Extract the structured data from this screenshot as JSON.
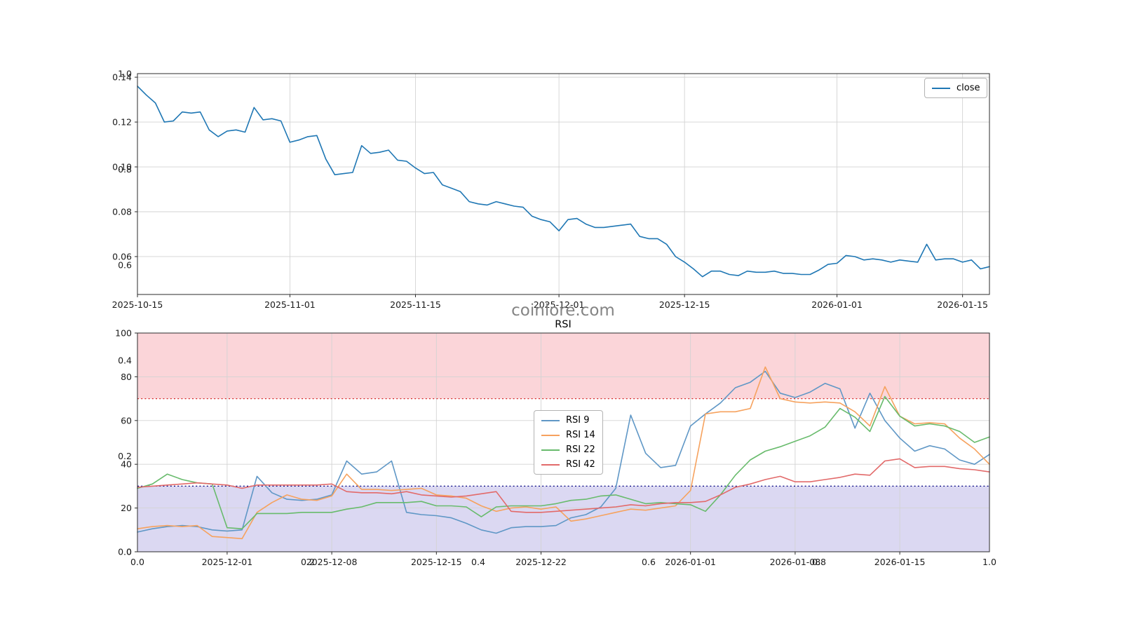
{
  "watermark": "coinlore.com",
  "phantom_axis": {
    "y_labels": [
      "0.0",
      "0.2",
      "0.4",
      "0.6",
      "0.8",
      "1.0"
    ],
    "x_labels": [
      "0.0",
      "0.2",
      "0.4",
      "0.6",
      "0.8",
      "1.0"
    ]
  },
  "chart_data": [
    {
      "type": "line",
      "name": "price",
      "title": "",
      "xlabel": "",
      "ylabel": "",
      "grid": true,
      "legend_position": "upper right",
      "x_tick_labels": [
        "2025-10-15",
        "2025-11-01",
        "2025-11-15",
        "2025-12-01",
        "2025-12-15",
        "2026-01-01",
        "2026-01-15"
      ],
      "x_tick_indices": [
        0,
        17,
        31,
        47,
        61,
        78,
        92
      ],
      "y_ticks": [
        0.06,
        0.08,
        0.1,
        0.12,
        0.14
      ],
      "y_tick_labels": [
        "0.06",
        "0.08",
        "0.10",
        "0.12",
        "0.14"
      ],
      "ylim": [
        0.0431,
        0.1416
      ],
      "series": [
        {
          "name": "close",
          "color": "#1f77b4",
          "values": [
            0.136,
            0.132,
            0.1285,
            0.12,
            0.1205,
            0.1245,
            0.124,
            0.1245,
            0.1165,
            0.1135,
            0.116,
            0.1165,
            0.1155,
            0.1265,
            0.121,
            0.1215,
            0.1205,
            0.111,
            0.112,
            0.1135,
            0.114,
            0.1035,
            0.0965,
            0.097,
            0.0975,
            0.1095,
            0.106,
            0.1065,
            0.1075,
            0.103,
            0.1025,
            0.0995,
            0.097,
            0.0975,
            0.092,
            0.0905,
            0.089,
            0.0845,
            0.0835,
            0.083,
            0.0845,
            0.0835,
            0.0825,
            0.082,
            0.078,
            0.0765,
            0.0755,
            0.0715,
            0.0765,
            0.077,
            0.0745,
            0.073,
            0.073,
            0.0735,
            0.074,
            0.0745,
            0.069,
            0.068,
            0.068,
            0.0655,
            0.06,
            0.0575,
            0.0545,
            0.051,
            0.0535,
            0.0535,
            0.052,
            0.0515,
            0.0535,
            0.053,
            0.053,
            0.0535,
            0.0525,
            0.0525,
            0.052,
            0.052,
            0.054,
            0.0565,
            0.057,
            0.0605,
            0.06,
            0.0585,
            0.059,
            0.0585,
            0.0575,
            0.0585,
            0.058,
            0.0575,
            0.0655,
            0.0585,
            0.059,
            0.059,
            0.0575,
            0.0585,
            0.0545,
            0.0555
          ]
        }
      ]
    },
    {
      "type": "line",
      "name": "rsi",
      "title": "RSI",
      "xlabel": "",
      "ylabel": "",
      "grid": true,
      "legend_position": "center left",
      "x_tick_labels": [
        "2025-12-01",
        "2025-12-08",
        "2025-12-15",
        "2025-12-22",
        "2026-01-01",
        "2026-01-08",
        "2026-01-15"
      ],
      "x_tick_indices": [
        6,
        13,
        20,
        27,
        37,
        44,
        51
      ],
      "y_ticks": [
        0,
        20,
        40,
        60,
        80,
        100
      ],
      "y_tick_labels": [
        "0",
        "20",
        "40",
        "60",
        "80",
        "100"
      ],
      "ylim": [
        0,
        100
      ],
      "hlines": [
        {
          "y": 70,
          "color": "#d62728",
          "style": "dotted"
        },
        {
          "y": 30,
          "color": "#000080",
          "style": "dotted"
        }
      ],
      "bands": [
        {
          "from": 70,
          "to": 100,
          "color": "#fbd5d9"
        },
        {
          "from": 0,
          "to": 30,
          "color": "#dbd8f2"
        }
      ],
      "series": [
        {
          "name": "RSI 9",
          "color": "#5f97c6",
          "values": [
            9,
            10.5,
            11.5,
            12,
            11.5,
            10,
            9.5,
            10,
            34.5,
            27,
            24,
            23.5,
            24,
            26,
            41.5,
            35.5,
            36.5,
            41.5,
            18,
            17,
            16.5,
            15.5,
            13,
            10,
            8.5,
            11,
            11.5,
            11.5,
            12,
            15.5,
            17,
            20.5,
            29,
            62.5,
            45,
            38.5,
            39.5,
            57.5,
            63,
            68,
            75,
            77.5,
            82.5,
            72.5,
            70.5,
            73,
            77,
            74.5,
            56.5,
            72.5,
            60,
            52,
            46,
            48.5,
            47,
            42,
            40,
            44.5
          ]
        },
        {
          "name": "RSI 14",
          "color": "#f6a25e",
          "values": [
            10.5,
            11.5,
            12,
            11.5,
            12,
            7,
            6.5,
            6,
            18,
            22.5,
            26,
            24,
            23.5,
            25.5,
            35.5,
            28.5,
            28.5,
            28,
            28.5,
            29,
            26,
            25.5,
            24.5,
            21,
            18.5,
            20,
            20.5,
            19.5,
            20.5,
            14,
            15,
            16.5,
            18,
            19.5,
            19,
            20,
            21,
            28,
            63,
            64,
            64,
            65.5,
            84.5,
            70,
            68.5,
            68,
            68.5,
            68,
            64,
            57.5,
            75.5,
            62,
            58.5,
            59,
            58.5,
            52,
            47,
            40
          ]
        },
        {
          "name": "RSI 22",
          "color": "#68bb6c",
          "values": [
            29,
            31,
            35.5,
            33,
            31.5,
            31,
            11,
            10.5,
            17.5,
            17.5,
            17.5,
            18,
            18,
            18,
            19.5,
            20.5,
            22.5,
            22.5,
            22.5,
            23,
            21,
            21,
            20.5,
            16,
            20.5,
            21,
            21,
            21,
            22,
            23.5,
            24,
            25.5,
            26,
            24,
            22,
            22.5,
            22,
            21.5,
            18.5,
            26,
            35,
            42,
            46,
            48,
            50.5,
            53,
            57,
            65.5,
            61.5,
            55,
            71,
            62,
            57.5,
            58.5,
            57.5,
            55,
            50,
            52.5
          ]
        },
        {
          "name": "RSI 42",
          "color": "#e26a6a",
          "values": [
            29.5,
            30,
            30.5,
            31,
            31.5,
            31,
            30.5,
            29,
            30.5,
            30.5,
            30.5,
            30.5,
            30.5,
            31,
            27.5,
            27,
            27,
            26.5,
            27.5,
            26,
            25.5,
            25,
            25.5,
            26.5,
            27.5,
            18.5,
            18,
            18,
            18.5,
            19,
            19.5,
            20,
            20.5,
            21.5,
            21,
            22,
            22.5,
            22.5,
            23,
            26,
            29.5,
            31,
            33,
            34.5,
            32,
            32,
            33,
            34,
            35.5,
            35,
            41.5,
            42.5,
            38.5,
            39,
            39,
            38,
            37.5,
            36.5
          ]
        }
      ]
    }
  ]
}
